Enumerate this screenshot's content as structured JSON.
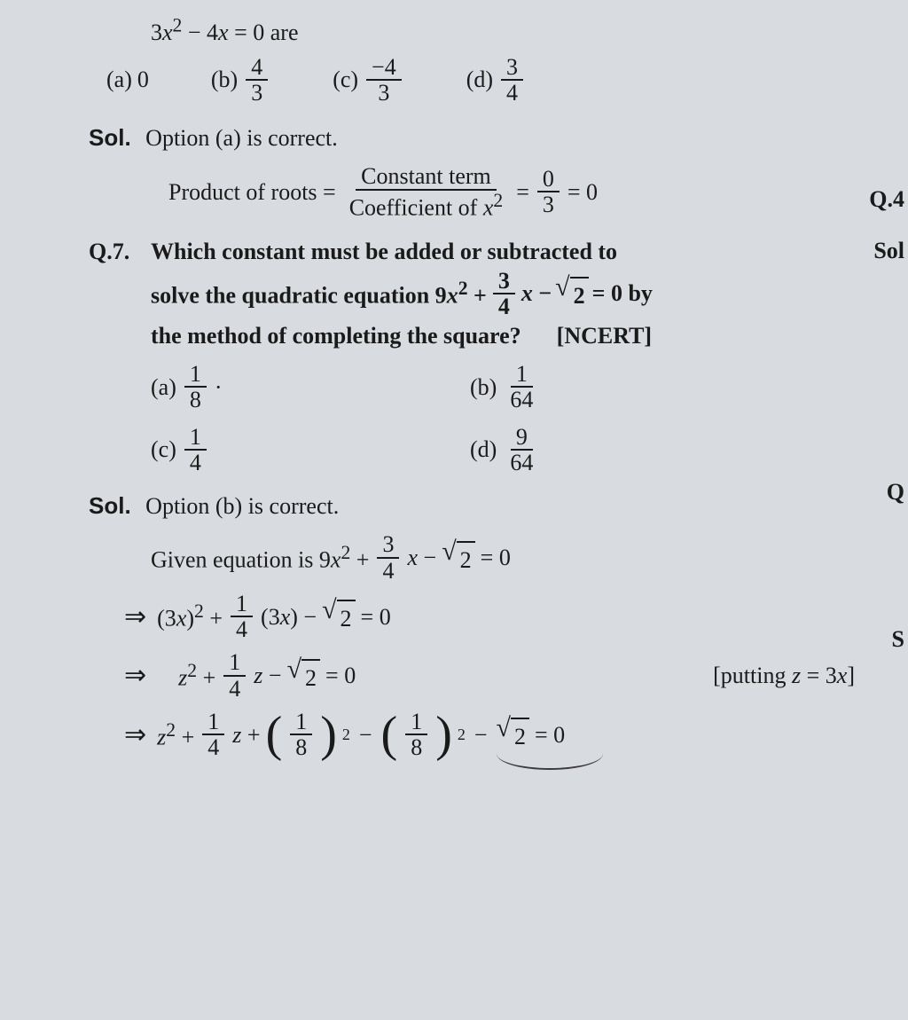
{
  "q6": {
    "equation_html": "3<i>x</i><sup>2</sup> − 4<i>x</i> = 0 are",
    "options": {
      "a": {
        "label": "(a)",
        "value": "0"
      },
      "b": {
        "label": "(b)",
        "num": "4",
        "den": "3"
      },
      "c": {
        "label": "(c)",
        "num": "−4",
        "den": "3"
      },
      "d": {
        "label": "(d)",
        "num": "3",
        "den": "4"
      }
    },
    "sol_label": "Sol.",
    "sol_text": "Option (a) is correct.",
    "product_lhs": "Product of roots =",
    "product_frac_num": "Constant term",
    "product_frac_den_html": "Coefficient of <i>x</i><sup>2</sup>",
    "product_frac2_num": "0",
    "product_frac2_den": "3",
    "product_tail": "= 0"
  },
  "q7": {
    "label": "Q.7.",
    "text_line1": "Which constant must be added or subtracted to",
    "text_line2_pre_html": "solve the quadratic equation 9<i>x</i><sup>2</sup> +",
    "text_line2_frac_num": "3",
    "text_line2_frac_den": "4",
    "text_line2_mid_html": "<i>x</i> −",
    "text_line2_sqrt": "2",
    "text_line2_post": "= 0 by",
    "text_line3": "the method of completing the square?",
    "ncert": "[NCERT]",
    "options": {
      "a": {
        "label": "(a)",
        "num": "1",
        "den": "8",
        "suffix": " ·"
      },
      "b": {
        "label": "(b)",
        "num": "1",
        "den": "64"
      },
      "c": {
        "label": "(c)",
        "num": "1",
        "den": "4"
      },
      "d": {
        "label": "(d)",
        "num": "9",
        "den": "64"
      }
    },
    "sol_label": "Sol.",
    "sol_text": "Option (b) is correct.",
    "given_pre_html": "Given equation is 9<i>x</i><sup>2</sup> +",
    "given_frac_num": "3",
    "given_frac_den": "4",
    "given_mid_html": "<i>x</i> −",
    "given_sqrt": "2",
    "given_post": "= 0",
    "step1_pre_html": "(3<i>x</i>)<sup>2</sup> +",
    "step1_frac_num": "1",
    "step1_frac_den": "4",
    "step1_mid_html": "(3<i>x</i>) −",
    "step1_sqrt": "2",
    "step1_post": "= 0",
    "step2_pre_html": "<i>z</i><sup>2</sup> +",
    "step2_frac_num": "1",
    "step2_frac_den": "4",
    "step2_mid_html": "<i>z</i> −",
    "step2_sqrt": "2",
    "step2_post": "= 0",
    "step2_note_html": "[putting <i>z</i> = 3<i>x</i>]",
    "step3_pre_html": "<i>z</i><sup>2</sup> +",
    "step3_frac1_num": "1",
    "step3_frac1_den": "4",
    "step3_mid1_html": "<i>z</i> +",
    "step3_frac2_num": "1",
    "step3_frac2_den": "8",
    "step3_exp2": "2",
    "step3_mid2": "−",
    "step3_frac3_num": "1",
    "step3_frac3_den": "8",
    "step3_exp3": "2",
    "step3_mid3": "−",
    "step3_sqrt": "2",
    "step3_post": "= 0"
  },
  "edge": {
    "q4": "Q.4",
    "sol": "Sol",
    "q": "Q",
    "s": "S"
  }
}
